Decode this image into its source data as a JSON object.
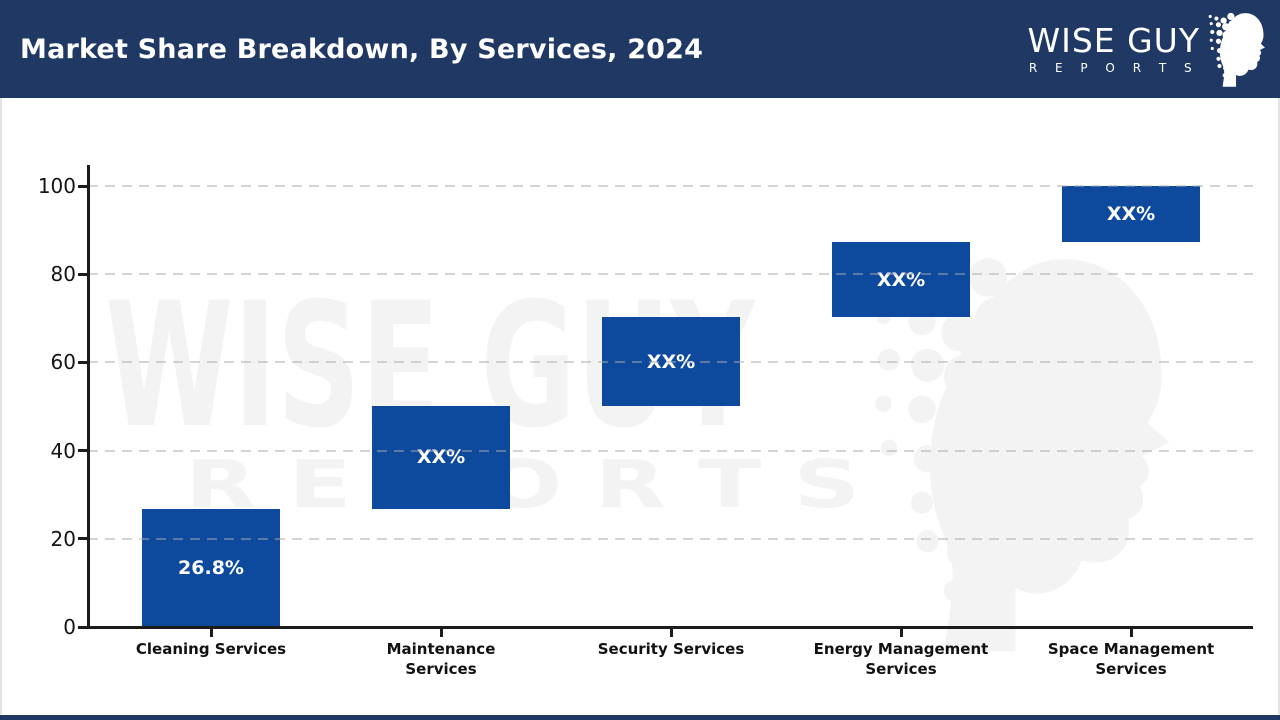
{
  "header": {
    "title": "Market Share Breakdown, By Services, 2024",
    "logo": {
      "line1": "WISE GUY",
      "line2": "R E P O R T S"
    }
  },
  "watermark": {
    "line1": "WISE GUY",
    "line2": "R E P O R T S"
  },
  "colors": {
    "header_bg": "#1f3864",
    "bar": "#0d4a9d",
    "bar_label": "#ffffff",
    "axis": "#1c1c1c",
    "grid": "rgba(170,170,170,0.5)",
    "watermark": "#f3f3f3",
    "footer_bg": "#1f3864"
  },
  "chart_data": {
    "type": "bar",
    "subtype": "floating-waterfall",
    "title": "Market Share Breakdown, By Services, 2024",
    "xlabel": "",
    "ylabel": "",
    "legend": "none",
    "grid": "horizontal-dashed",
    "ylim": [
      0,
      105
    ],
    "yticks": [
      0,
      20,
      40,
      60,
      80,
      100
    ],
    "categories": [
      "Cleaning Services",
      "Maintenance Services",
      "Security Services",
      "Energy Management Services",
      "Space Management Services"
    ],
    "bars": [
      {
        "category": "Cleaning Services",
        "start": 0,
        "end": 26.8,
        "label": "26.8%"
      },
      {
        "category": "Maintenance Services",
        "start": 26.8,
        "end": 50.2,
        "label": "XX%"
      },
      {
        "category": "Security Services",
        "start": 50.2,
        "end": 70.2,
        "label": "XX%"
      },
      {
        "category": "Energy Management Services",
        "start": 70.2,
        "end": 87.3,
        "label": "XX%"
      },
      {
        "category": "Space Management Services",
        "start": 87.3,
        "end": 100,
        "label": "XX%"
      }
    ]
  }
}
